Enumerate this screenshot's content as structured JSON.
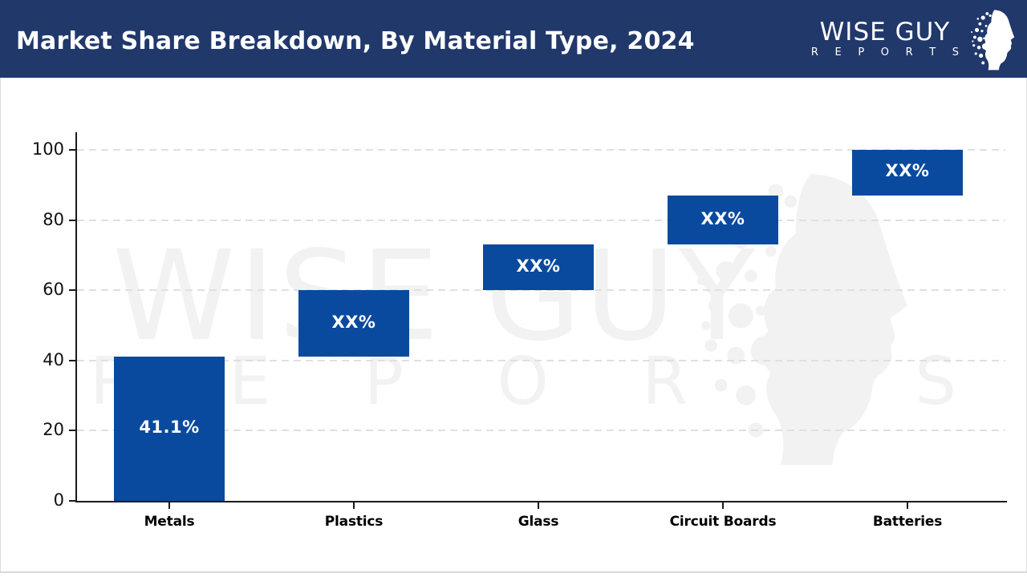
{
  "header": {
    "title": "Market Share Breakdown, By Material Type, 2024",
    "logo": {
      "line1": "WISE GUY",
      "line2": "REPORTS"
    }
  },
  "watermark": {
    "line1": "WISE GUY",
    "line2": "REPORTS"
  },
  "colors": {
    "header_bg": "#21386b",
    "bar": "#0a4a9e",
    "grid": "#e0e0e0",
    "axis": "#1a1a1a",
    "watermark": "#f2f2f2",
    "bar_label": "#ffffff",
    "title_text": "#ffffff"
  },
  "chart_data": {
    "type": "bar",
    "subtype": "waterfall",
    "title": "Market Share Breakdown, By Material Type, 2024",
    "xlabel": "",
    "ylabel": "",
    "categories": [
      "Metals",
      "Plastics",
      "Glass",
      "Circuit Boards",
      "Batteries"
    ],
    "segments": [
      {
        "category": "Metals",
        "start": 0,
        "end": 41.1,
        "label": "41.1%"
      },
      {
        "category": "Plastics",
        "start": 41.1,
        "end": 60,
        "label": "XX%"
      },
      {
        "category": "Glass",
        "start": 60,
        "end": 73,
        "label": "XX%"
      },
      {
        "category": "Circuit Boards",
        "start": 73,
        "end": 87,
        "label": "XX%"
      },
      {
        "category": "Batteries",
        "start": 87,
        "end": 100,
        "label": "XX%"
      }
    ],
    "yticks": [
      0,
      20,
      40,
      60,
      80,
      100
    ],
    "ylim": [
      0,
      105
    ],
    "grid": "horizontal-dashed",
    "legend": "none"
  }
}
